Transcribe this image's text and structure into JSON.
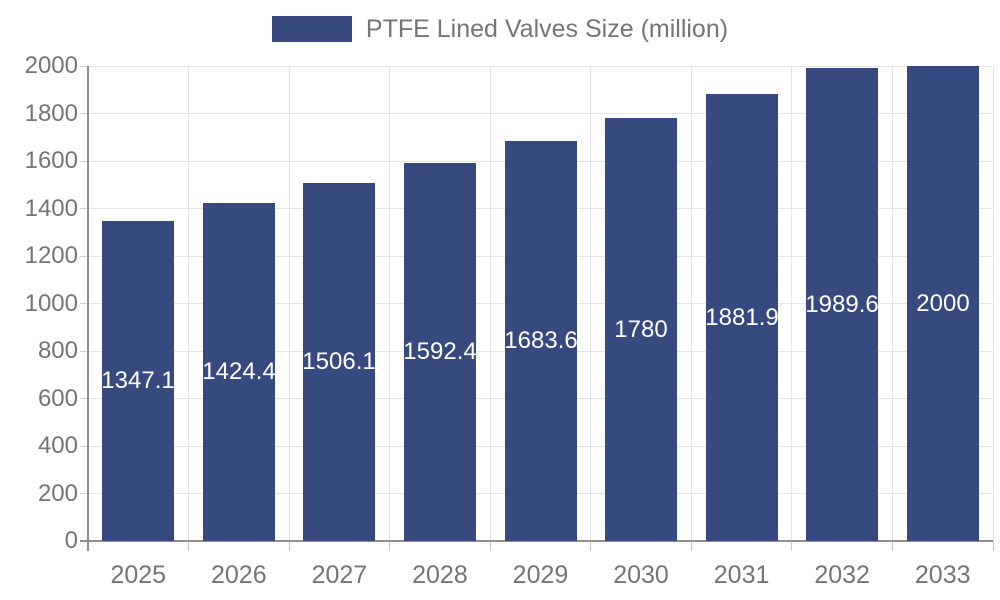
{
  "chart_data": {
    "type": "bar",
    "title": "PTFE Lined Valves Size (million)",
    "categories": [
      "2025",
      "2026",
      "2027",
      "2028",
      "2029",
      "2030",
      "2031",
      "2032",
      "2033"
    ],
    "values": [
      1347.1,
      1424.4,
      1506.1,
      1592.4,
      1683.6,
      1780,
      1881.9,
      1989.6,
      2000
    ],
    "value_labels": [
      "1347.1",
      "1424.4",
      "1506.1",
      "1592.4",
      "1683.6",
      "1780",
      "1881.9",
      "1989.6",
      "2000"
    ],
    "xlabel": "",
    "ylabel": "",
    "ylim": [
      0,
      2000
    ],
    "yticks": [
      0,
      200,
      400,
      600,
      800,
      1000,
      1200,
      1400,
      1600,
      1800,
      2000
    ],
    "grid": true,
    "legend_position": "top-center",
    "value_label_position": "inside-center",
    "colors": {
      "bar": "#374a80",
      "grid": "#e6e6e6",
      "tick": "#cccccc",
      "axis": "#8f8f8f",
      "axis_text": "#757575",
      "legend_text": "#757575",
      "value_text": "#ffffff",
      "background": "#ffffff"
    }
  }
}
